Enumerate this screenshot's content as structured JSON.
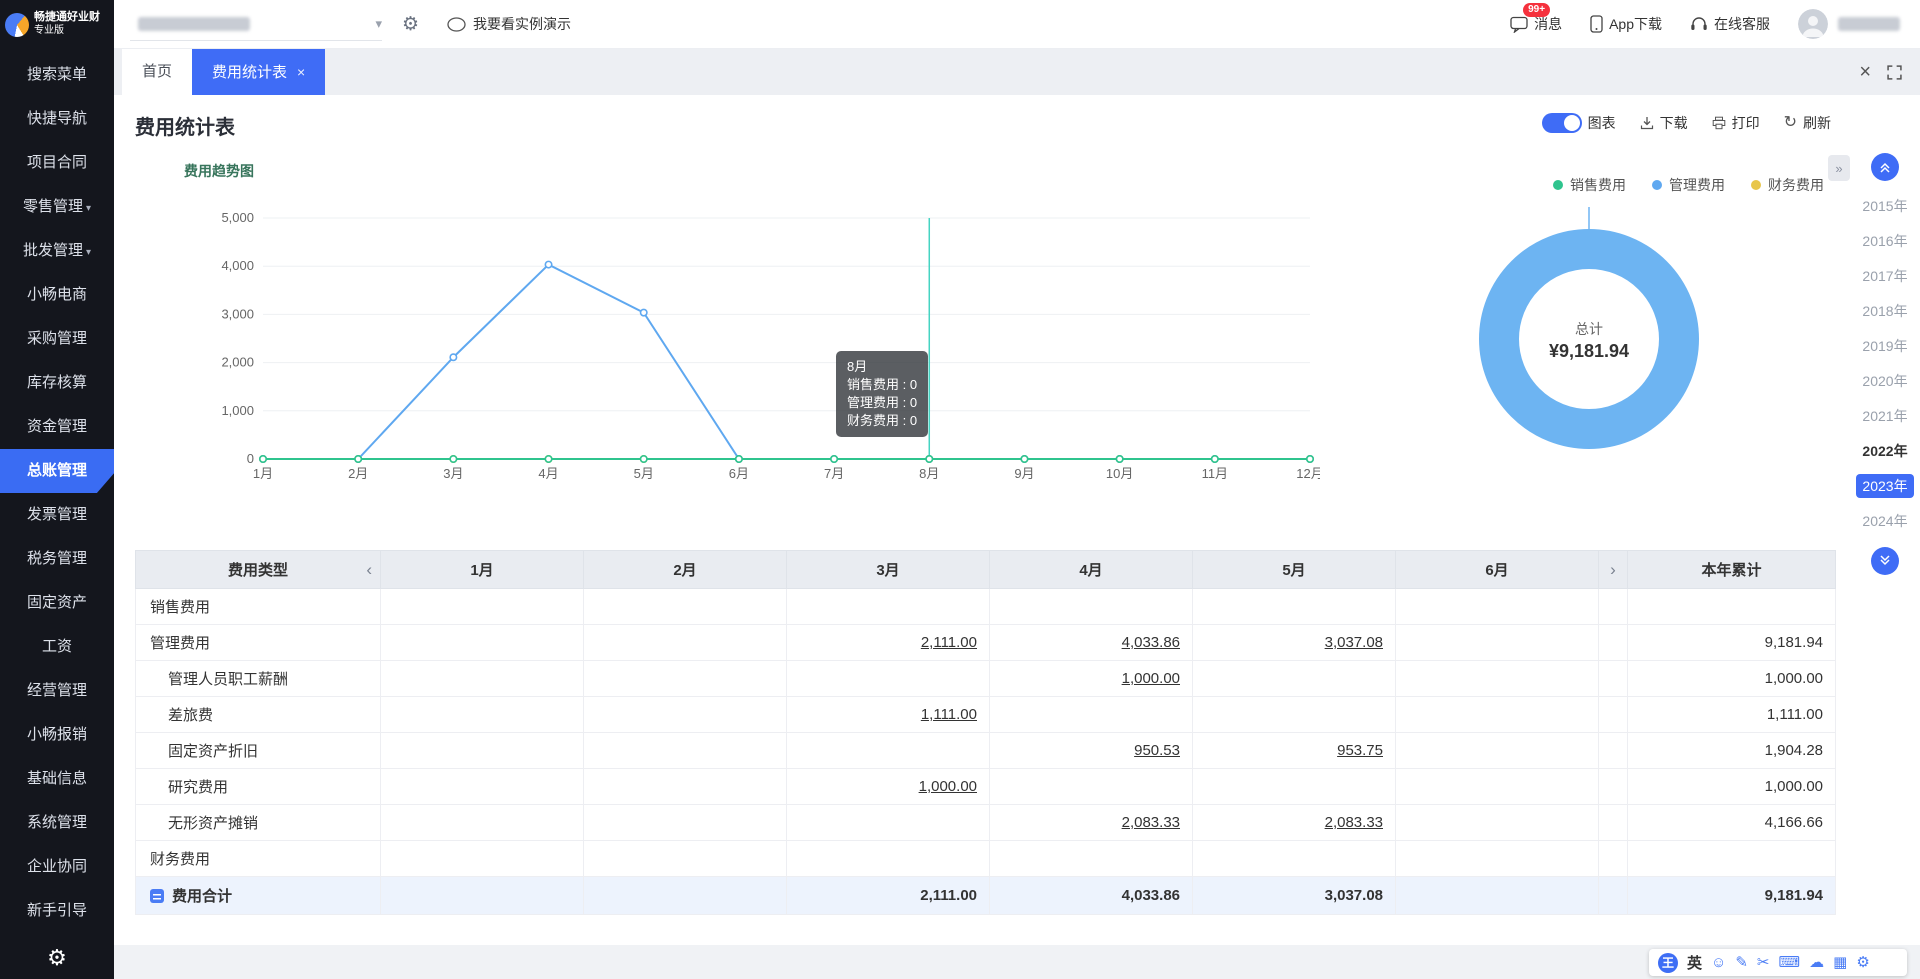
{
  "app": {
    "logo_line1": "畅捷通好业财",
    "logo_line2": "专业版"
  },
  "sidebar": {
    "items": [
      {
        "label": "搜索菜单"
      },
      {
        "label": "快捷导航"
      },
      {
        "label": "项目合同"
      },
      {
        "label": "零售管理",
        "caret": true
      },
      {
        "label": "批发管理",
        "caret": true
      },
      {
        "label": "小畅电商"
      },
      {
        "label": "采购管理"
      },
      {
        "label": "库存核算"
      },
      {
        "label": "资金管理"
      },
      {
        "label": "总账管理",
        "active": true
      },
      {
        "label": "发票管理"
      },
      {
        "label": "税务管理"
      },
      {
        "label": "固定资产"
      },
      {
        "label": "工资"
      },
      {
        "label": "经营管理"
      },
      {
        "label": "小畅报销"
      },
      {
        "label": "基础信息"
      },
      {
        "label": "系统管理"
      },
      {
        "label": "企业协同"
      },
      {
        "label": "新手引导"
      }
    ]
  },
  "topbar": {
    "demo_label": "我要看实例演示",
    "messages_label": "消息",
    "messages_badge": "99+",
    "app_download_label": "App下载",
    "support_label": "在线客服"
  },
  "tabbar": {
    "tabs": [
      {
        "label": "首页",
        "active": false,
        "closable": false
      },
      {
        "label": "费用统计表",
        "active": true,
        "closable": true
      }
    ]
  },
  "page": {
    "title": "费用统计表",
    "toolbar": {
      "chart_toggle_label": "图表",
      "download_label": "下载",
      "print_label": "打印",
      "refresh_label": "刷新"
    }
  },
  "chart_data": [
    {
      "type": "line",
      "title": "费用趋势图",
      "x": [
        "1月",
        "2月",
        "3月",
        "4月",
        "5月",
        "6月",
        "7月",
        "8月",
        "9月",
        "10月",
        "11月",
        "12月"
      ],
      "series": [
        {
          "name": "销售费用",
          "color": "#2fc48e",
          "values": [
            0,
            0,
            0,
            0,
            0,
            0,
            0,
            0,
            0,
            0,
            0,
            0
          ]
        },
        {
          "name": "管理费用",
          "color": "#5fa8f0",
          "values": [
            0,
            0,
            2111,
            4033.86,
            3037.08,
            0,
            0,
            0,
            0,
            0,
            0,
            0
          ]
        },
        {
          "name": "财务费用",
          "color": "#e8c64a",
          "values": [
            0,
            0,
            0,
            0,
            0,
            0,
            0,
            0,
            0,
            0,
            0,
            0
          ]
        }
      ],
      "ylim": [
        0,
        5000
      ],
      "yticks": [
        0,
        1000,
        2000,
        3000,
        4000,
        5000
      ],
      "grid": true,
      "legend_position": "top-right",
      "hover_index": 7,
      "hover_line_color": "#45d4c2"
    },
    {
      "type": "pie",
      "title": "总计",
      "center_value": "¥9,181.94",
      "slices": [
        {
          "name": "管理费用",
          "value": 9181.94,
          "color": "#6db4f2"
        }
      ]
    }
  ],
  "tooltip": {
    "title": "8月",
    "lines": [
      "销售费用 : 0",
      "管理费用 : 0",
      "财务费用 : 0"
    ]
  },
  "year_panel": {
    "years": [
      "2015年",
      "2016年",
      "2017年",
      "2018年",
      "2019年",
      "2020年",
      "2021年",
      "2022年",
      "2023年",
      "2024年"
    ],
    "selected": "2023年",
    "highlighted": "2022年"
  },
  "table": {
    "headers": [
      "费用类型",
      "1月",
      "2月",
      "3月",
      "4月",
      "5月",
      "6月",
      "本年累计"
    ],
    "rows": [
      {
        "name": "销售费用",
        "indent": 0,
        "cells": [
          "",
          "",
          "",
          "",
          "",
          ""
        ],
        "total": ""
      },
      {
        "name": "管理费用",
        "indent": 0,
        "cells": [
          "",
          "",
          "2,111.00",
          "4,033.86",
          "3,037.08",
          ""
        ],
        "total": "9,181.94"
      },
      {
        "name": "管理人员职工薪酬",
        "indent": 1,
        "cells": [
          "",
          "",
          "",
          "1,000.00",
          "",
          ""
        ],
        "total": "1,000.00"
      },
      {
        "name": "差旅费",
        "indent": 1,
        "cells": [
          "",
          "",
          "1,111.00",
          "",
          "",
          ""
        ],
        "total": "1,111.00"
      },
      {
        "name": "固定资产折旧",
        "indent": 1,
        "cells": [
          "",
          "",
          "",
          "950.53",
          "953.75",
          ""
        ],
        "total": "1,904.28"
      },
      {
        "name": "研究费用",
        "indent": 1,
        "cells": [
          "",
          "",
          "1,000.00",
          "",
          "",
          ""
        ],
        "total": "1,000.00"
      },
      {
        "name": "无形资产摊销",
        "indent": 1,
        "cells": [
          "",
          "",
          "",
          "2,083.33",
          "2,083.33",
          ""
        ],
        "total": "4,166.66"
      },
      {
        "name": "财务费用",
        "indent": 0,
        "cells": [
          "",
          "",
          "",
          "",
          "",
          ""
        ],
        "total": ""
      },
      {
        "name": "费用合计",
        "indent": 0,
        "is_total": true,
        "cells": [
          "",
          "",
          "2,111.00",
          "4,033.86",
          "3,037.08",
          ""
        ],
        "total": "9,181.94"
      }
    ]
  },
  "ime": {
    "logo": "王",
    "lang": "英",
    "icons": [
      "smiley-icon",
      "pen-icon",
      "scissors-icon",
      "keyboard-icon",
      "cloud-icon",
      "grid-icon",
      "gear-icon"
    ]
  },
  "colors": {
    "accent_blue": "#3f6cf6",
    "sidebar_bg": "#14161d",
    "badge_red": "#f5313d",
    "table_header_bg": "#e9ecf1",
    "total_row_bg": "#edf3fd"
  }
}
